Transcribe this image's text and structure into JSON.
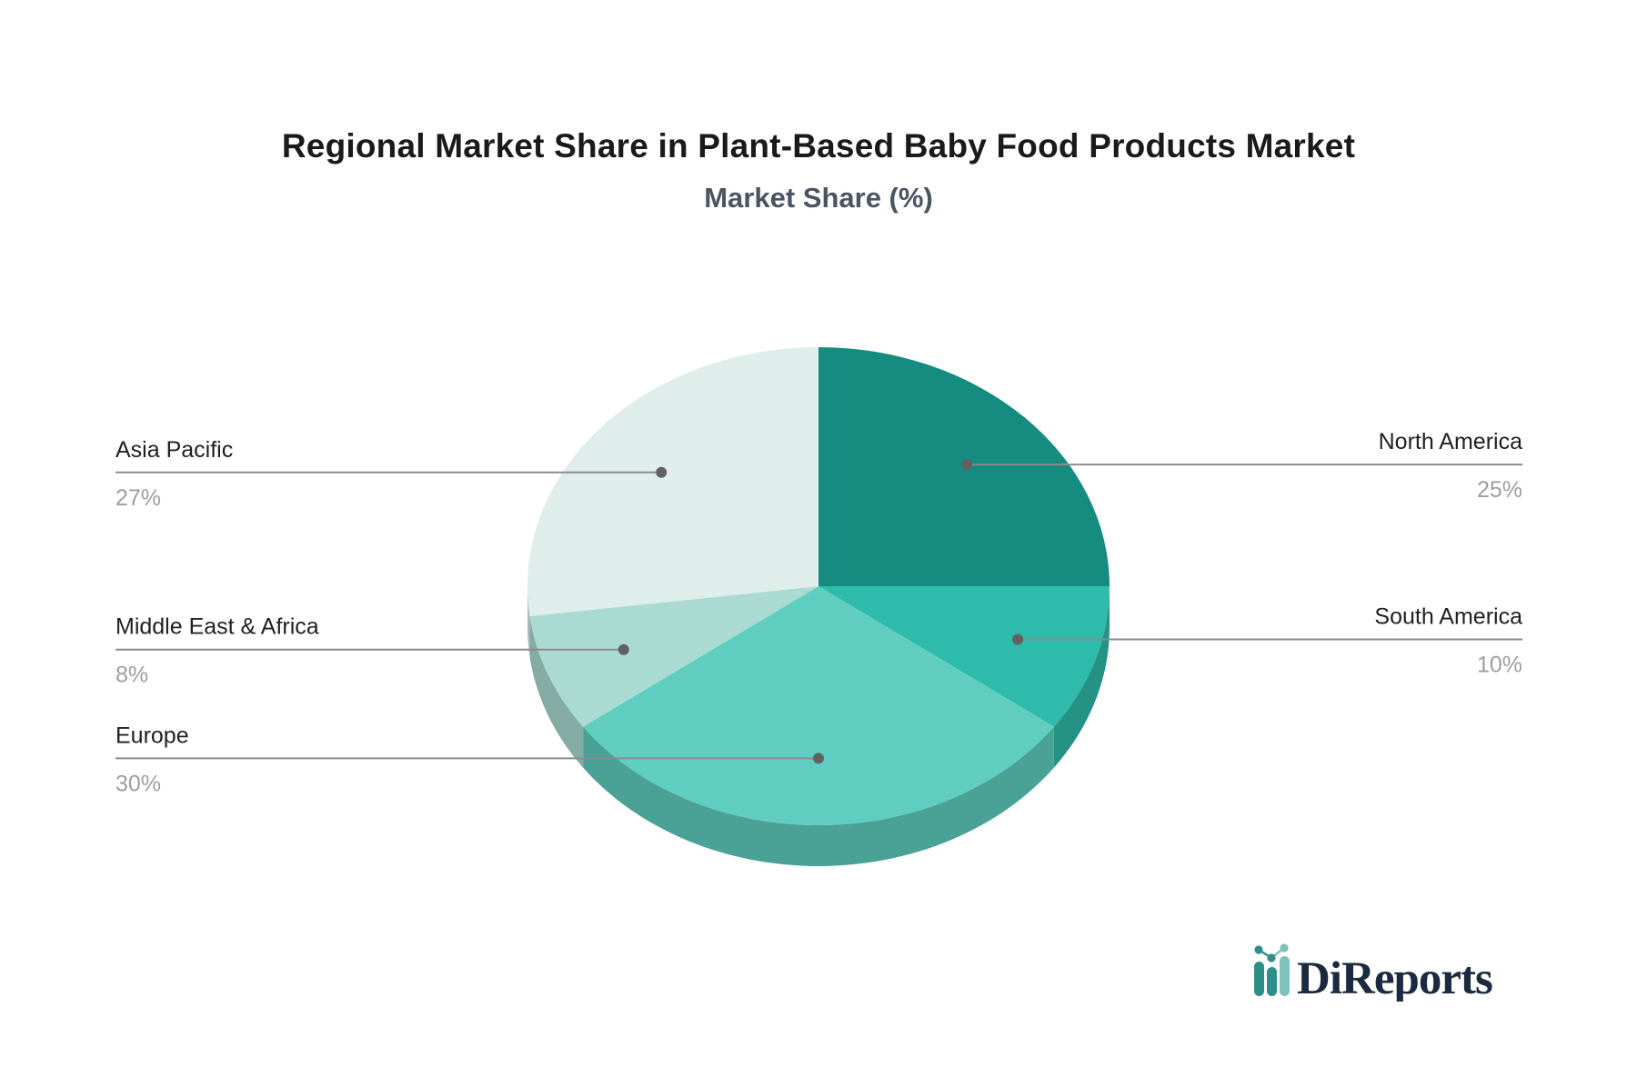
{
  "page": {
    "background": "#ffffff"
  },
  "chart_data": {
    "type": "pie",
    "title": "Regional Market Share in Plant-Based Baby Food Products Market",
    "subtitle": "Market Share (%)",
    "unit": "%",
    "style_3d": true,
    "start_angle_deg": -90,
    "direction": "clockwise",
    "legend_position": "none",
    "grid": false,
    "slices": [
      {
        "label": "North America",
        "value": 25,
        "display": "25%",
        "color": "#168B80",
        "label_side": "right"
      },
      {
        "label": "South America",
        "value": 10,
        "display": "10%",
        "color": "#2EBBAB",
        "label_side": "right"
      },
      {
        "label": "Europe",
        "value": 30,
        "display": "30%",
        "color": "#5FCEC0",
        "label_side": "left"
      },
      {
        "label": "Middle East & Africa",
        "value": 8,
        "display": "8%",
        "color": "#A9DBD2",
        "label_side": "left"
      },
      {
        "label": "Asia Pacific",
        "value": 27,
        "display": "27%",
        "color": "#DFEEEA",
        "label_side": "left"
      }
    ],
    "label_text_color": "#212121",
    "value_text_color": "#9e9e9e",
    "leader_line_color": "#8b8b8b",
    "leader_dot_color": "#616161"
  },
  "branding": {
    "logo_text": "DiReports",
    "logo_text_color": "#1B2A40",
    "icon_teal": "#2E8F89",
    "icon_teal_light": "#7FC2BB"
  }
}
